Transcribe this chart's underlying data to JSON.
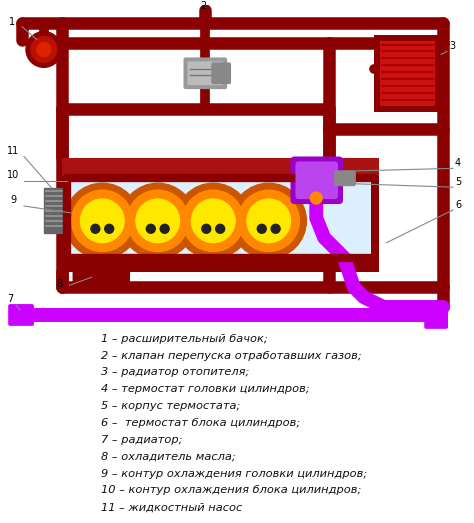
{
  "background_color": "#ffffff",
  "legend_items": [
    "1 – расширительный бачок;",
    "2 – клапан перепуска отработавших газов;",
    "3 – радиатор отопителя;",
    "4 – термостат головки цилиндров;",
    "5 – корпус термостата;",
    "6 –  термостат блока цилиндров;",
    "7 – радиатор;",
    "8 – охладитель масла;",
    "9 – контур охлаждения головки цилиндров;",
    "10 – контур охлаждения блока цилиндров;",
    "11 – жидкостный насос"
  ],
  "dr": "#8B0000",
  "red_mid": "#AA1111",
  "purple": "#CC00FF",
  "yellow": "#FFE800",
  "orange": "#FF8800",
  "orange2": "#CC5500",
  "light_blue": "#DCF0FF",
  "text_color": "#111111",
  "font_size": 8.2,
  "lw_main": 9,
  "lw_inner": 6
}
